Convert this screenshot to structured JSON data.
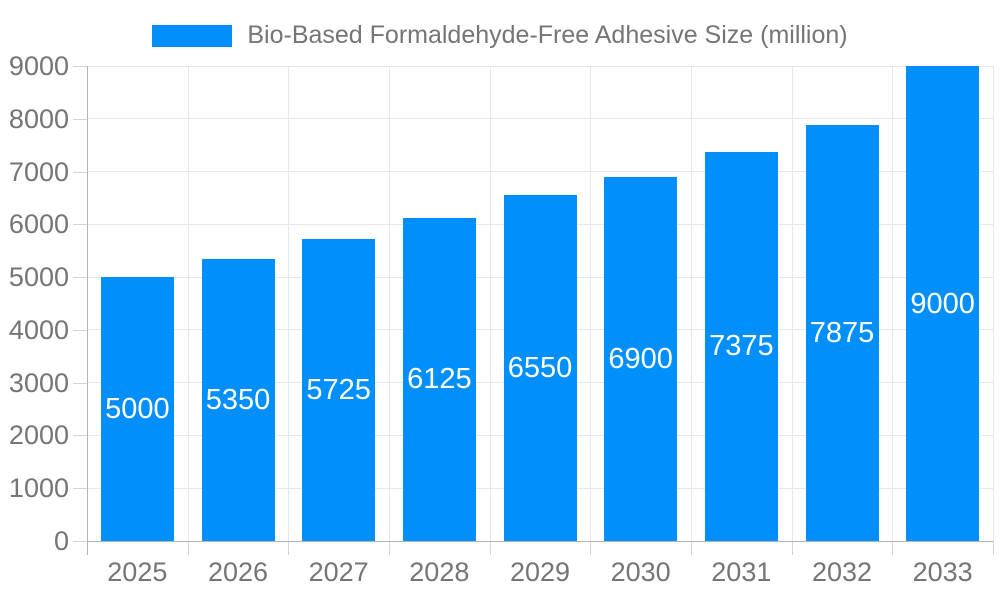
{
  "legend": {
    "label": "Bio-Based Formaldehyde-Free Adhesive Size (million)"
  },
  "chart_data": {
    "type": "bar",
    "title": "Bio-Based Formaldehyde-Free Adhesive Size (million)",
    "categories": [
      "2025",
      "2026",
      "2027",
      "2028",
      "2029",
      "2030",
      "2031",
      "2032",
      "2033"
    ],
    "values": [
      5000,
      5350,
      5725,
      6125,
      6550,
      6900,
      7375,
      7875,
      9000
    ],
    "xlabel": "",
    "ylabel": "",
    "ylim": [
      0,
      9000
    ],
    "ytick_step": 1000,
    "ytick_labels": [
      "0",
      "1000",
      "2000",
      "3000",
      "4000",
      "5000",
      "6000",
      "7000",
      "8000",
      "9000"
    ],
    "grid": true,
    "legend_position": "top",
    "bar_labels_inside": true,
    "colors": {
      "bar": "#008FFB",
      "bar_label": "#ffffff",
      "axis_label": "#757575",
      "grid_line": "#e7e7e7",
      "axis_line": "#b3b3b3",
      "tick": "#d4d4d4",
      "background": "#ffffff"
    }
  }
}
